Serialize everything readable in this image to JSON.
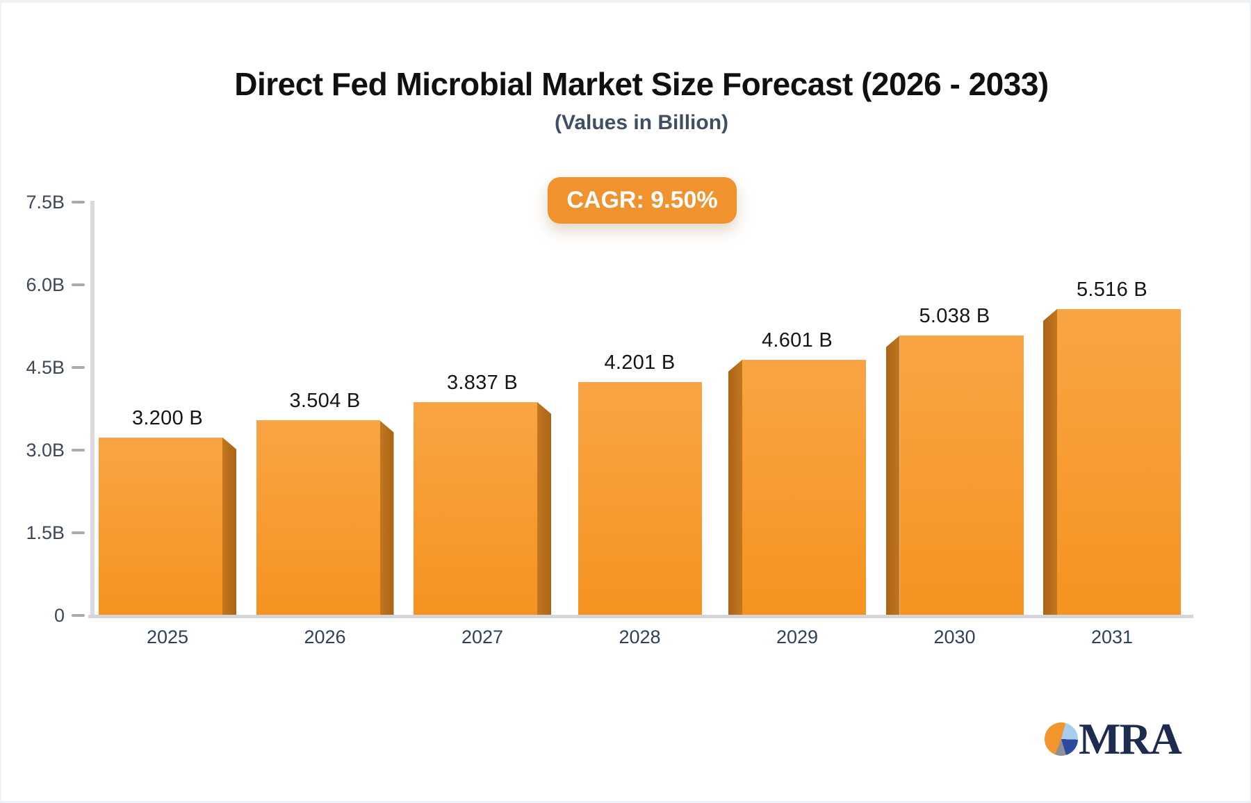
{
  "header": {
    "title": "Direct Fed Microbial Market Size Forecast (2026 - 2033)",
    "subtitle": "(Values in Billion)"
  },
  "badge": {
    "label": "CAGR: 9.50%",
    "bg_color": "#f0922d",
    "text_color": "#ffffff"
  },
  "chart_data": {
    "type": "bar",
    "title": "Direct Fed Microbial Market Size Forecast (2026 - 2033)",
    "subtitle": "(Values in Billion)",
    "xlabel": "",
    "ylabel": "",
    "categories": [
      "2025",
      "2026",
      "2027",
      "2028",
      "2029",
      "2030",
      "2031"
    ],
    "values": [
      3.2,
      3.504,
      3.837,
      4.201,
      4.601,
      5.038,
      5.516
    ],
    "value_labels": [
      "3.200 B",
      "3.504 B",
      "3.837 B",
      "4.201 B",
      "4.601 B",
      "5.038 B",
      "5.516 B"
    ],
    "y_tick_labels": [
      "7.5B",
      "6.0B",
      "4.5B",
      "3.0B",
      "1.5B",
      "0"
    ],
    "y_tick_values": [
      7.5,
      6.0,
      4.5,
      3.0,
      1.5,
      0
    ],
    "ylim": [
      0,
      7.5
    ],
    "grid": false,
    "legend_position": "none",
    "cagr_annotation": "CAGR: 9.50%",
    "colors": {
      "bar_face_top": "#f9a444",
      "bar_face_bottom": "#f69320",
      "bar_side_light": "#c2761f",
      "bar_side_dark": "#aa6517",
      "axis_line": "#d6d8db",
      "tick_dash": "#a7acb4",
      "tick_label": "#3d4755",
      "category_label": "#31405c",
      "value_label": "#151515",
      "badge_orange": "#f0922d"
    }
  },
  "logo": {
    "text": "MRA",
    "text_color": "#1d2b50",
    "pie_icon_colors": {
      "orange": "#f2952c",
      "light_blue": "#a9cdec",
      "dark_blue": "#2b4b9e",
      "gray": "#8f9097"
    }
  }
}
